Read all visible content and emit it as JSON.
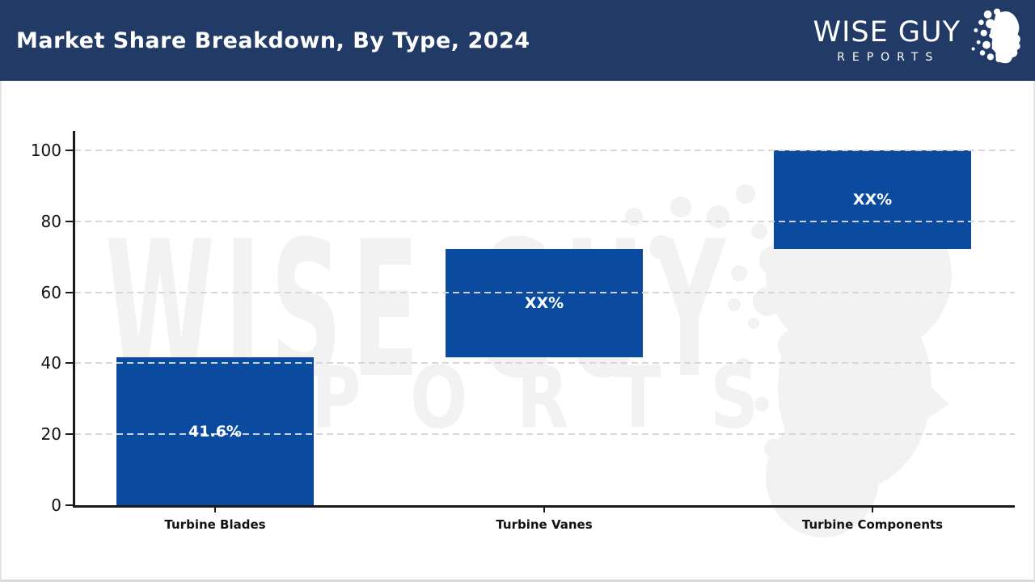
{
  "header": {
    "title": "Market Share Breakdown, By Type, 2024",
    "logo": {
      "line1": "WISE GUY",
      "line2": "REPORTS"
    }
  },
  "watermark": {
    "line1": "WISE GUY",
    "line2": "REPORTS"
  },
  "chart_data": {
    "type": "bar",
    "subtype": "floating-waterfall",
    "title": "Market Share Breakdown, By Type, 2024",
    "categories": [
      "Turbine Blades",
      "Turbine Vanes",
      "Turbine Components"
    ],
    "segments": [
      {
        "category": "Turbine Blades",
        "start": 0,
        "end": 41.6,
        "label": "41.6%"
      },
      {
        "category": "Turbine Vanes",
        "start": 41.6,
        "end": 72.2,
        "label": "XX%"
      },
      {
        "category": "Turbine Components",
        "start": 72.2,
        "end": 100,
        "label": "XX%"
      }
    ],
    "yticks": [
      0,
      20,
      40,
      60,
      80,
      100
    ],
    "ylim": [
      0,
      105
    ],
    "xlabel": "",
    "ylabel": "",
    "grid": "horizontal-dashed",
    "legend": "none",
    "bar_color": "#0b4b9f",
    "bar_label_color": "#ffffff",
    "grid_color": "#d6d6d6",
    "axis_color": "#1a1a1a"
  },
  "colors": {
    "header_bg": "#213a66",
    "header_text": "#ffffff",
    "watermark": "#f2f2f2",
    "page_border": "#dddddd"
  }
}
